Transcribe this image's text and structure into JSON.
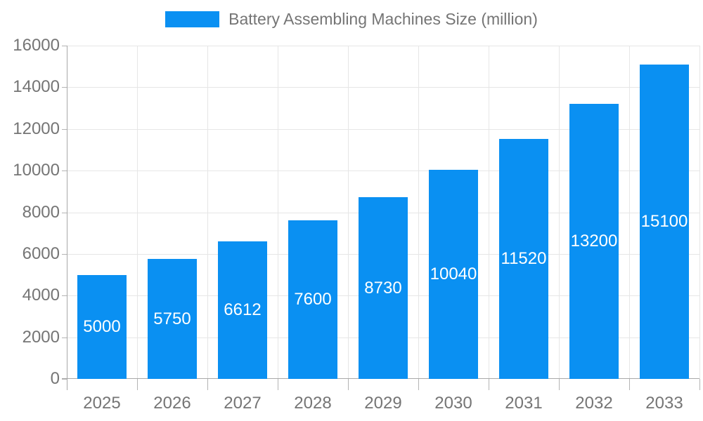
{
  "legend": {
    "label": "Battery Assembling Machines Size (million)",
    "swatch_color": "#0a90f2"
  },
  "chart_data": {
    "type": "bar",
    "title": "Battery Assembling Machines Size (million)",
    "categories": [
      "2025",
      "2026",
      "2027",
      "2028",
      "2029",
      "2030",
      "2031",
      "2032",
      "2033"
    ],
    "values": [
      5000,
      5750,
      6612,
      7600,
      8730,
      10040,
      11520,
      13200,
      15100
    ],
    "value_labels": [
      "5000",
      "5750",
      "6612",
      "7600",
      "8730",
      "10040",
      "11520",
      "13200",
      "15100"
    ],
    "xlabel": "",
    "ylabel": "",
    "ylim": [
      0,
      16000
    ],
    "yticks": [
      0,
      2000,
      4000,
      6000,
      8000,
      10000,
      12000,
      14000,
      16000
    ],
    "ytick_labels": [
      "0",
      "2000",
      "4000",
      "6000",
      "8000",
      "10000",
      "12000",
      "14000",
      "16000"
    ],
    "grid": true,
    "legend_position": "top",
    "bar_color": "#0a90f2",
    "value_label_color": "#ffffff",
    "axis_text_color": "#757575",
    "gridline_color": "#e6e6e6",
    "axis_line_color": "#a8a8a8"
  }
}
